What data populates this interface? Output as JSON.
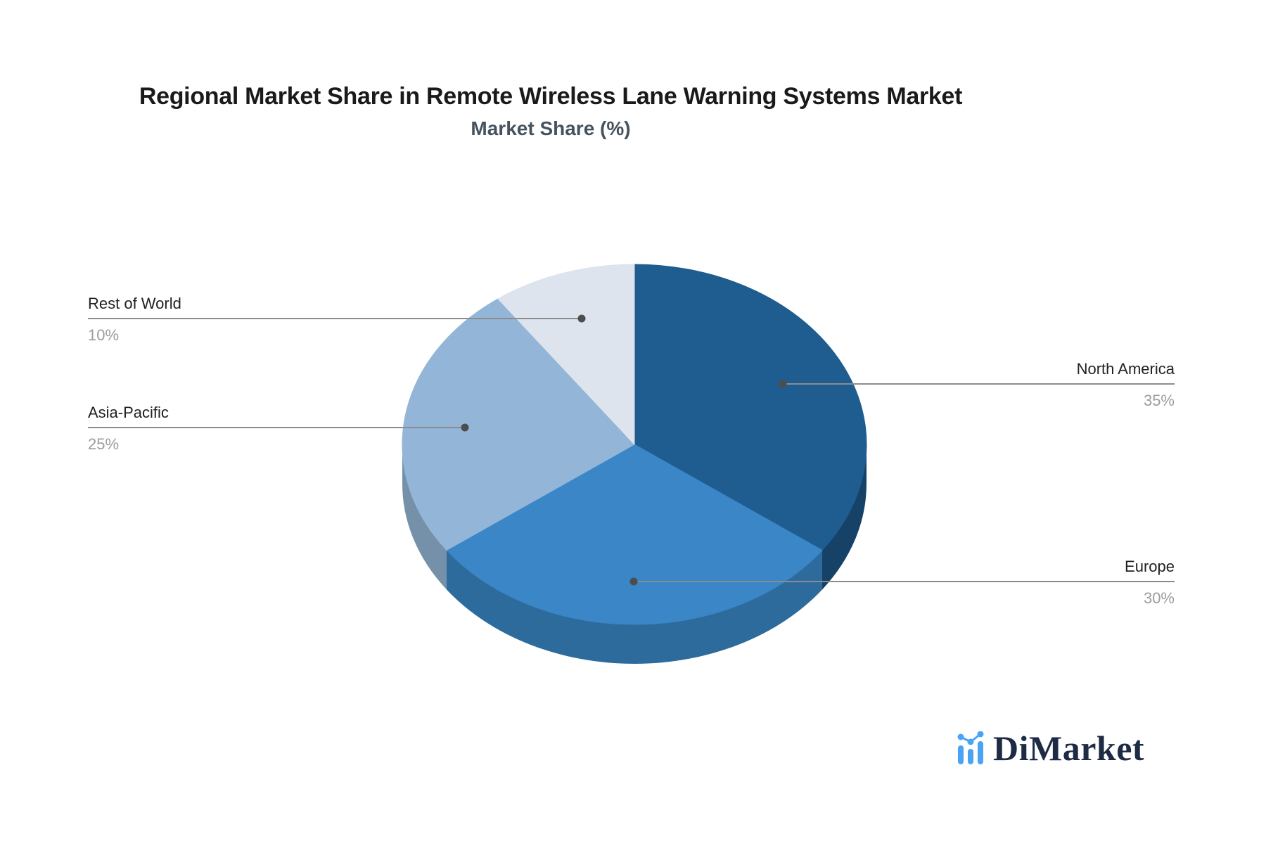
{
  "chart_data": {
    "type": "pie",
    "title": "Regional Market Share in Remote Wireless Lane Warning Systems Market",
    "subtitle": "Market Share (%)",
    "unit": "%",
    "style": "3d-oblique",
    "start_angle": "top",
    "direction": "clockwise",
    "legend": "none",
    "labels_style": "callout-lines",
    "slices": [
      {
        "label": "North America",
        "value": 35,
        "pct": "35%",
        "color": "#1F5C90",
        "side_color": "#164268"
      },
      {
        "label": "Europe",
        "value": 30,
        "pct": "30%",
        "color": "#3A86C7",
        "side_color": "#2D6B9D"
      },
      {
        "label": "Asia-Pacific",
        "value": 25,
        "pct": "25%",
        "color": "#93B5D7",
        "side_color": "#7591A9"
      },
      {
        "label": "Rest of World",
        "value": 10,
        "pct": "10%",
        "color": "#DDE4EE"
      }
    ]
  },
  "colors": {
    "background": "#FFFFFF",
    "title_text": "#1A1A1A",
    "subtitle_text": "#46535E",
    "label_text": "#212121",
    "pct_text": "#9C9C9C",
    "leader_line": "#8C8C8C",
    "leader_dot": "#4D4D4D",
    "logo_text": "#1D2B44",
    "logo_icon": "#4BA3F5"
  },
  "logo": {
    "text": "DiMarket",
    "icon": "bar-line-chart-icon"
  }
}
